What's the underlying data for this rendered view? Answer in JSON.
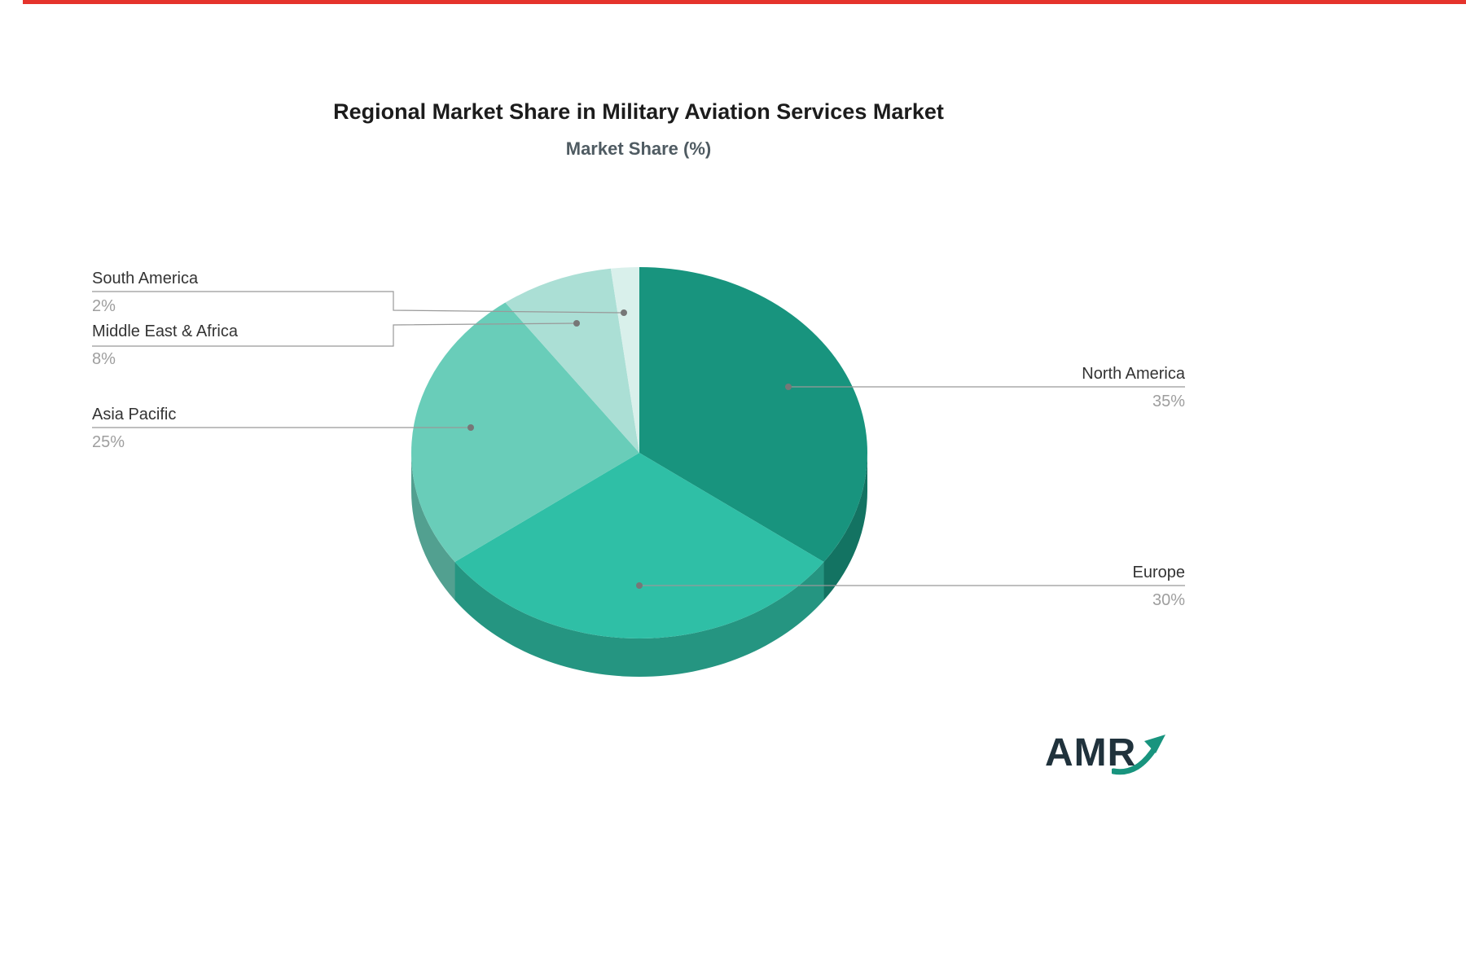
{
  "chart_data": {
    "type": "pie",
    "title": "Regional Market Share in Military Aviation Services Market",
    "subtitle": "Market Share (%)",
    "labels": [
      "North America",
      "Europe",
      "Asia Pacific",
      "Middle East & Africa",
      "South America"
    ],
    "values": [
      35,
      30,
      25,
      8,
      2
    ],
    "unit": "%",
    "colors": [
      "#18947e",
      "#2fbfa6",
      "#69cdb9",
      "#abdfd5",
      "#d9f0eb"
    ],
    "start_angle_deg": -90,
    "direction": "clockwise",
    "style": "3d-pie",
    "legend_position": "none",
    "labels_as": "callouts-with-leader-lines"
  },
  "callouts": [
    {
      "label": "North America",
      "pct": "35%"
    },
    {
      "label": "Europe",
      "pct": "30%"
    },
    {
      "label": "Asia Pacific",
      "pct": "25%"
    },
    {
      "label": "Middle East & Africa",
      "pct": "8%"
    },
    {
      "label": "South America",
      "pct": "2%"
    }
  ],
  "logo": {
    "text": "AMR"
  },
  "colors": {
    "accent_teal": "#18947e",
    "connector": "#999999",
    "connector_dot": "#777777",
    "label_text": "#333333",
    "value_text": "#9e9e9e",
    "top_bar": "#e5332c",
    "logo_text": "#20323c"
  }
}
